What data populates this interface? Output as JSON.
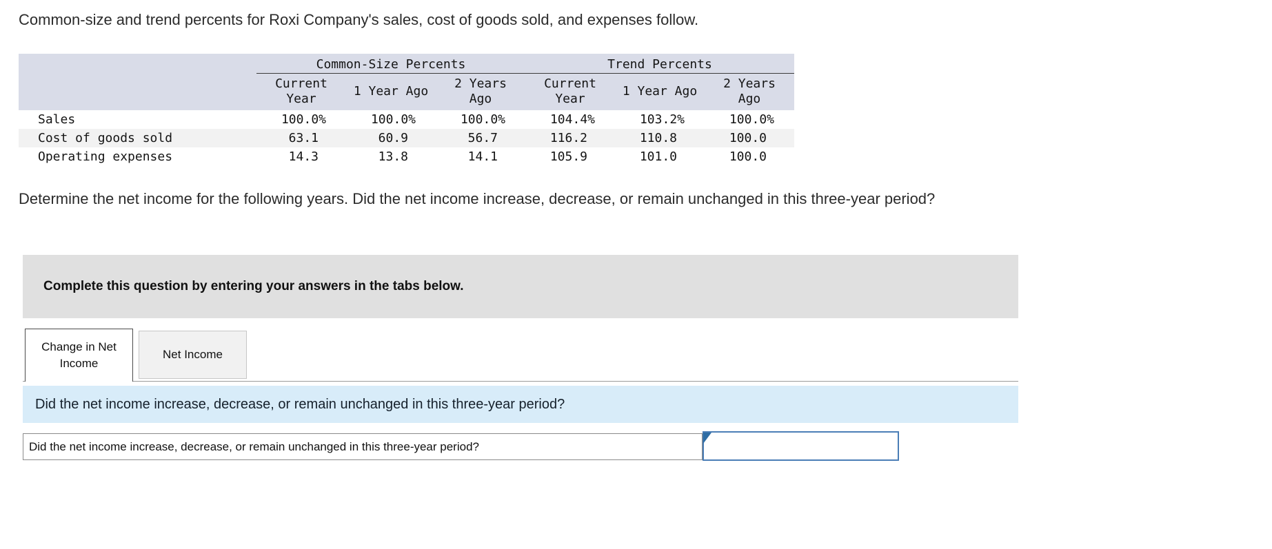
{
  "page": {
    "intro": "Common-size and trend percents for Roxi Company's sales, cost of goods sold, and expenses follow.",
    "question": "Determine the net income for the following years. Did the net income increase, decrease, or remain unchanged in this three-year period?",
    "instruction_banner": "Complete this question by entering your answers in the tabs below."
  },
  "table": {
    "group_headers": [
      "Common-Size Percents",
      "Trend Percents"
    ],
    "col_headers": [
      "Current Year",
      "1 Year Ago",
      "2 Years Ago",
      "Current Year",
      "1 Year Ago",
      "2 Years Ago"
    ],
    "rows": [
      {
        "label": "Sales",
        "values": [
          "100.0%",
          "100.0%",
          "100.0%",
          "104.4%",
          "103.2%",
          "100.0%"
        ]
      },
      {
        "label": "Cost of goods sold",
        "values": [
          "63.1",
          "60.9",
          "56.7",
          "116.2",
          "110.8",
          "100.0"
        ]
      },
      {
        "label": "Operating expenses",
        "values": [
          "14.3",
          "13.8",
          "14.1",
          "105.9",
          "101.0",
          "100.0"
        ]
      }
    ]
  },
  "tabs": [
    {
      "label": "Change in Net Income",
      "active": true
    },
    {
      "label": "Net Income",
      "active": false
    }
  ],
  "panel": {
    "prompt": "Did the net income increase, decrease, or remain unchanged in this three-year period?",
    "answer_label": "Did the net income increase, decrease, or remain unchanged in this three-year period?",
    "answer_value": ""
  },
  "colors": {
    "table_header_bg": "#d9dce8",
    "row_alt_bg": "#f2f2f2",
    "instruction_bg": "#e0e0e0",
    "prompt_bg": "#d8ecf9",
    "input_border": "#4a7db6",
    "marker": "#2e6da4"
  }
}
